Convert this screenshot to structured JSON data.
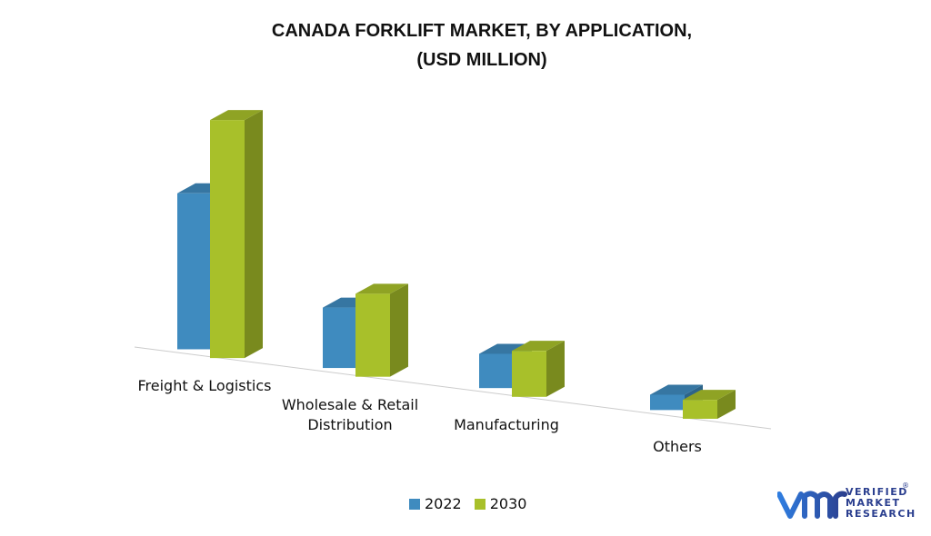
{
  "chart_data": {
    "type": "bar3d",
    "title": "CANADA FORKLIFT MARKET, BY APPLICATION,\n(USD MILLION)",
    "categories": [
      "Freight & Logistics",
      "Wholesale & Retail Distribution",
      "Manufacturing",
      "Others"
    ],
    "series": [
      {
        "name": "2022",
        "color": "#3f8bbf",
        "values": [
          173,
          67,
          38,
          17
        ]
      },
      {
        "name": "2030",
        "color": "#a8c02a",
        "values": [
          264,
          92,
          51,
          21
        ]
      }
    ]
  },
  "logo": {
    "text": "VERIFIED\nMARKET\nRESEARCH",
    "mark": "®"
  }
}
